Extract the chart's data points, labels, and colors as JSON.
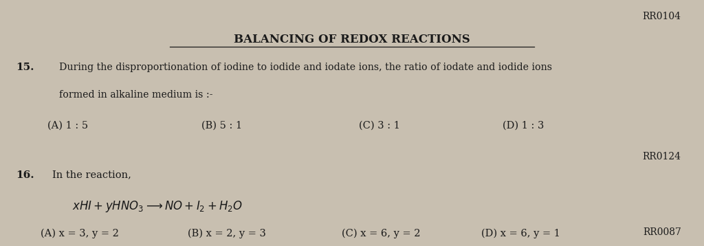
{
  "bg_color": "#c8bfb0",
  "text_color": "#1a1a1a",
  "header_code": "RR0104",
  "title": "BALANCING OF REDOX REACTIONS",
  "q15_number": "15.",
  "q15_text1": "During the disproportionation of iodine to iodide and iodate ions, the ratio of iodate and iodide ions",
  "q15_text2": "formed in alkaline medium is :-",
  "q15_A": "(A) 1 : 5",
  "q15_B": "(B) 5 : 1",
  "q15_C": "(C) 3 : 1",
  "q15_D": "(D) 1 : 3",
  "mid_code": "RR0124",
  "q16_number": "16.",
  "q16_intro": "In the reaction,",
  "q16_equation": "$xHI + yHNO_3 \\longrightarrow NO + I_2 + H_2O$",
  "q16_A": "(A) x = 3, y = 2",
  "q16_B": "(B) x = 2, y = 3",
  "q16_C": "(C) x = 6, y = 2",
  "q16_D": "(D) x = 6, y = 1",
  "bottom_code": "RR0087"
}
